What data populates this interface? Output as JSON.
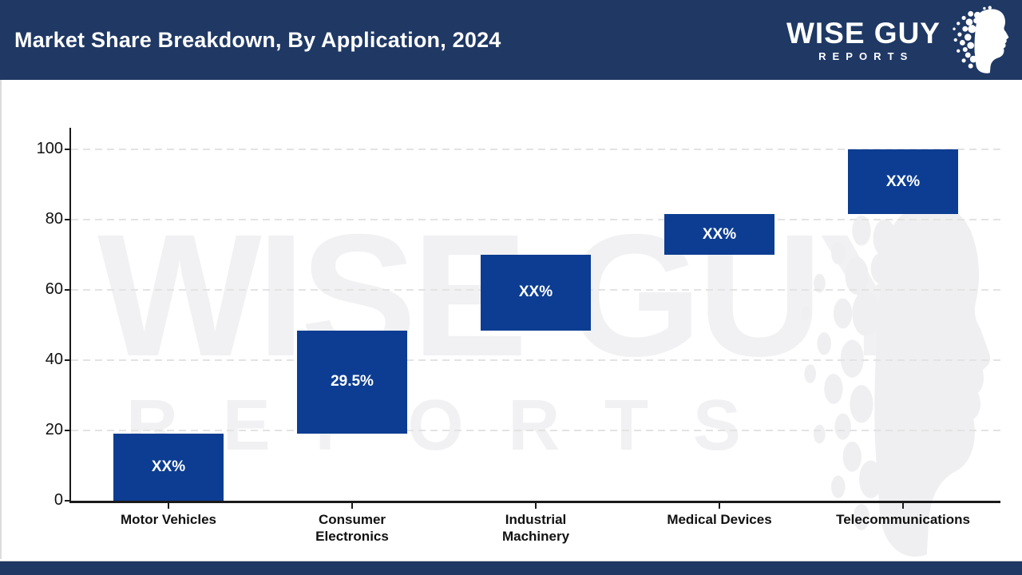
{
  "header": {
    "title": "Market Share Breakdown, By Application, 2024",
    "logo": {
      "line1": "WISE GUY",
      "line2": "REPORTS"
    }
  },
  "watermark": {
    "line1": "WISE GUY",
    "line2": "REPORTS"
  },
  "chart_data": {
    "type": "bar",
    "subtype": "waterfall",
    "title": "Market Share Breakdown, By Application, 2024",
    "xlabel": "",
    "ylabel": "",
    "categories": [
      "Motor Vehicles",
      "Consumer Electronics",
      "Industrial Machinery",
      "Medical Devices",
      "Telecommunications"
    ],
    "category_label_lines": [
      [
        "Motor Vehicles"
      ],
      [
        "Consumer",
        "Electronics"
      ],
      [
        "Industrial",
        "Machinery"
      ],
      [
        "Medical Devices"
      ],
      [
        "Telecommunications"
      ]
    ],
    "segments": [
      {
        "category": "Motor Vehicles",
        "start": 0,
        "end": 19,
        "value": 19,
        "label": "XX%"
      },
      {
        "category": "Consumer Electronics",
        "start": 19,
        "end": 48.5,
        "value": 29.5,
        "label": "29.5%"
      },
      {
        "category": "Industrial Machinery",
        "start": 48.5,
        "end": 70,
        "value": 21.5,
        "label": "XX%"
      },
      {
        "category": "Medical Devices",
        "start": 70,
        "end": 81.5,
        "value": 11.5,
        "label": "XX%"
      },
      {
        "category": "Telecommunications",
        "start": 81.5,
        "end": 100,
        "value": 18.5,
        "label": "XX%"
      }
    ],
    "yticks": [
      0,
      20,
      40,
      60,
      80,
      100
    ],
    "ylim": [
      0,
      106
    ],
    "bar_color": "#0c3d92",
    "label_color": "#ffffff",
    "grid": {
      "axis": "y",
      "style": "dashed",
      "color": "#e3e3e3"
    },
    "legend": "none"
  }
}
